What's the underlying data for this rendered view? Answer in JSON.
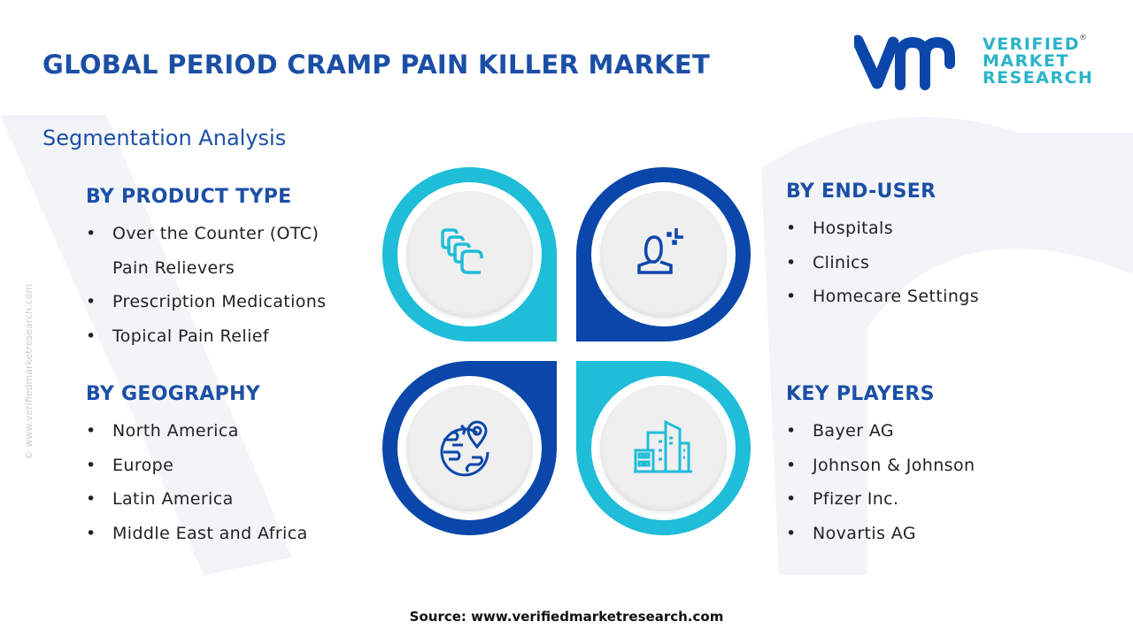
{
  "header": {
    "title": "GLOBAL PERIOD CRAMP PAIN KILLER MARKET",
    "subtitle": "Segmentation Analysis"
  },
  "logo": {
    "lines": [
      "VERIFIED",
      "MARKET",
      "RESEARCH"
    ],
    "registered": "®"
  },
  "side_watermark": "© www.verifiedmarketresearch.com",
  "colors": {
    "title": "#1b4fa6",
    "cyan": "#1fbdd8",
    "blue": "#0b47aa"
  },
  "segments": {
    "product_type": {
      "heading": "BY PRODUCT TYPE",
      "items": [
        "Over the Counter (OTC)",
        "Pain Relievers",
        "Prescription Medications",
        "Topical Pain Relief"
      ],
      "icon": "pills-icon"
    },
    "end_user": {
      "heading": "BY END-USER",
      "items": [
        "Hospitals",
        "Clinics",
        "Homecare Settings"
      ],
      "icon": "user-icon"
    },
    "geography": {
      "heading": "BY GEOGRAPHY",
      "items": [
        "North America",
        "Europe",
        "Latin America",
        "Middle East and Africa"
      ],
      "icon": "globe-pin-icon"
    },
    "key_players": {
      "heading": "KEY PLAYERS",
      "items": [
        "Bayer AG",
        "Johnson & Johnson",
        "Pfizer Inc.",
        "Novartis AG"
      ],
      "icon": "buildings-icon"
    }
  },
  "footer": {
    "source": "Source: www.verifiedmarketresearch.com"
  }
}
